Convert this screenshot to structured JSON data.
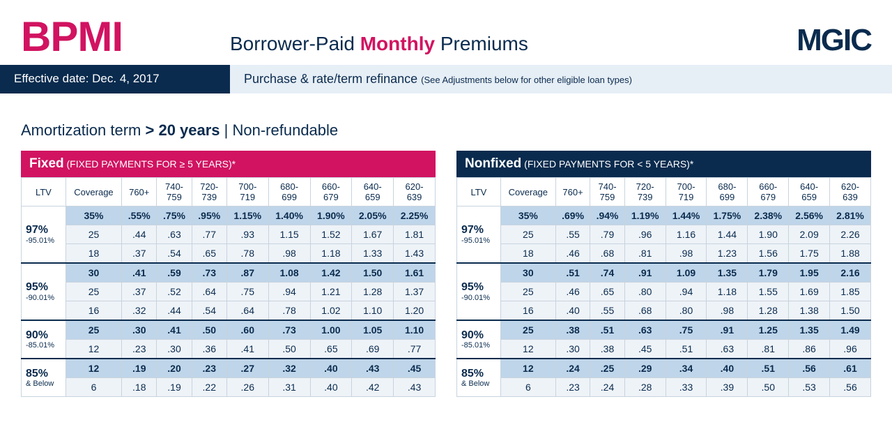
{
  "header": {
    "bpmi": "BPMI",
    "subtitle_pre": "Borrower-Paid ",
    "subtitle_bold": "Monthly",
    "subtitle_post": " Premiums",
    "logo": "MGIC",
    "eff_date": "Effective date: Dec. 4, 2017",
    "eff_desc": "Purchase & rate/term refinance ",
    "eff_desc_small": "(See Adjustments below for other eligible loan types)"
  },
  "amort": {
    "pre": "Amortization term ",
    "bold": "> 20 years",
    "post": " | Non-refundable"
  },
  "col_headers": [
    "LTV",
    "Coverage",
    "760+",
    "740-759",
    "720-739",
    "700-719",
    "680-699",
    "660-679",
    "640-659",
    "620-639"
  ],
  "ltv_groups": [
    {
      "main": "97%",
      "sub": "-95.01%",
      "rows": 3
    },
    {
      "main": "95%",
      "sub": "-90.01%",
      "rows": 3
    },
    {
      "main": "90%",
      "sub": "-85.01%",
      "rows": 2
    },
    {
      "main": "85%",
      "sub": "& Below",
      "rows": 2
    }
  ],
  "fixed": {
    "title_big": "Fixed",
    "title_small": " (FIXED PAYMENTS FOR ≥ 5 YEARS)*",
    "rows": [
      {
        "hl": true,
        "cov": "35%",
        "v": [
          ".55%",
          ".75%",
          ".95%",
          "1.15%",
          "1.40%",
          "1.90%",
          "2.05%",
          "2.25%"
        ]
      },
      {
        "hl": false,
        "cov": "25",
        "v": [
          ".44",
          ".63",
          ".77",
          ".93",
          "1.15",
          "1.52",
          "1.67",
          "1.81"
        ]
      },
      {
        "hl": false,
        "cov": "18",
        "v": [
          ".37",
          ".54",
          ".65",
          ".78",
          ".98",
          "1.18",
          "1.33",
          "1.43"
        ]
      },
      {
        "hl": true,
        "cov": "30",
        "v": [
          ".41",
          ".59",
          ".73",
          ".87",
          "1.08",
          "1.42",
          "1.50",
          "1.61"
        ]
      },
      {
        "hl": false,
        "cov": "25",
        "v": [
          ".37",
          ".52",
          ".64",
          ".75",
          ".94",
          "1.21",
          "1.28",
          "1.37"
        ]
      },
      {
        "hl": false,
        "cov": "16",
        "v": [
          ".32",
          ".44",
          ".54",
          ".64",
          ".78",
          "1.02",
          "1.10",
          "1.20"
        ]
      },
      {
        "hl": true,
        "cov": "25",
        "v": [
          ".30",
          ".41",
          ".50",
          ".60",
          ".73",
          "1.00",
          "1.05",
          "1.10"
        ]
      },
      {
        "hl": false,
        "cov": "12",
        "v": [
          ".23",
          ".30",
          ".36",
          ".41",
          ".50",
          ".65",
          ".69",
          ".77"
        ]
      },
      {
        "hl": true,
        "cov": "12",
        "v": [
          ".19",
          ".20",
          ".23",
          ".27",
          ".32",
          ".40",
          ".43",
          ".45"
        ]
      },
      {
        "hl": false,
        "cov": "6",
        "v": [
          ".18",
          ".19",
          ".22",
          ".26",
          ".31",
          ".40",
          ".42",
          ".43"
        ]
      }
    ]
  },
  "nonfixed": {
    "title_big": "Nonfixed",
    "title_small": " (FIXED PAYMENTS FOR < 5 YEARS)*",
    "rows": [
      {
        "hl": true,
        "cov": "35%",
        "v": [
          ".69%",
          ".94%",
          "1.19%",
          "1.44%",
          "1.75%",
          "2.38%",
          "2.56%",
          "2.81%"
        ]
      },
      {
        "hl": false,
        "cov": "25",
        "v": [
          ".55",
          ".79",
          ".96",
          "1.16",
          "1.44",
          "1.90",
          "2.09",
          "2.26"
        ]
      },
      {
        "hl": false,
        "cov": "18",
        "v": [
          ".46",
          ".68",
          ".81",
          ".98",
          "1.23",
          "1.56",
          "1.75",
          "1.88"
        ]
      },
      {
        "hl": true,
        "cov": "30",
        "v": [
          ".51",
          ".74",
          ".91",
          "1.09",
          "1.35",
          "1.79",
          "1.95",
          "2.16"
        ]
      },
      {
        "hl": false,
        "cov": "25",
        "v": [
          ".46",
          ".65",
          ".80",
          ".94",
          "1.18",
          "1.55",
          "1.69",
          "1.85"
        ]
      },
      {
        "hl": false,
        "cov": "16",
        "v": [
          ".40",
          ".55",
          ".68",
          ".80",
          ".98",
          "1.28",
          "1.38",
          "1.50"
        ]
      },
      {
        "hl": true,
        "cov": "25",
        "v": [
          ".38",
          ".51",
          ".63",
          ".75",
          ".91",
          "1.25",
          "1.35",
          "1.49"
        ]
      },
      {
        "hl": false,
        "cov": "12",
        "v": [
          ".30",
          ".38",
          ".45",
          ".51",
          ".63",
          ".81",
          ".86",
          ".96"
        ]
      },
      {
        "hl": true,
        "cov": "12",
        "v": [
          ".24",
          ".25",
          ".29",
          ".34",
          ".40",
          ".51",
          ".56",
          ".61"
        ]
      },
      {
        "hl": false,
        "cov": "6",
        "v": [
          ".23",
          ".24",
          ".28",
          ".33",
          ".39",
          ".50",
          ".53",
          ".56"
        ]
      }
    ]
  },
  "colors": {
    "magenta": "#d11361",
    "navy": "#0a2b4e",
    "row_hl": "#bfd5e9",
    "row_norm": "#eef3f8",
    "header_band": "#e6eef6"
  }
}
